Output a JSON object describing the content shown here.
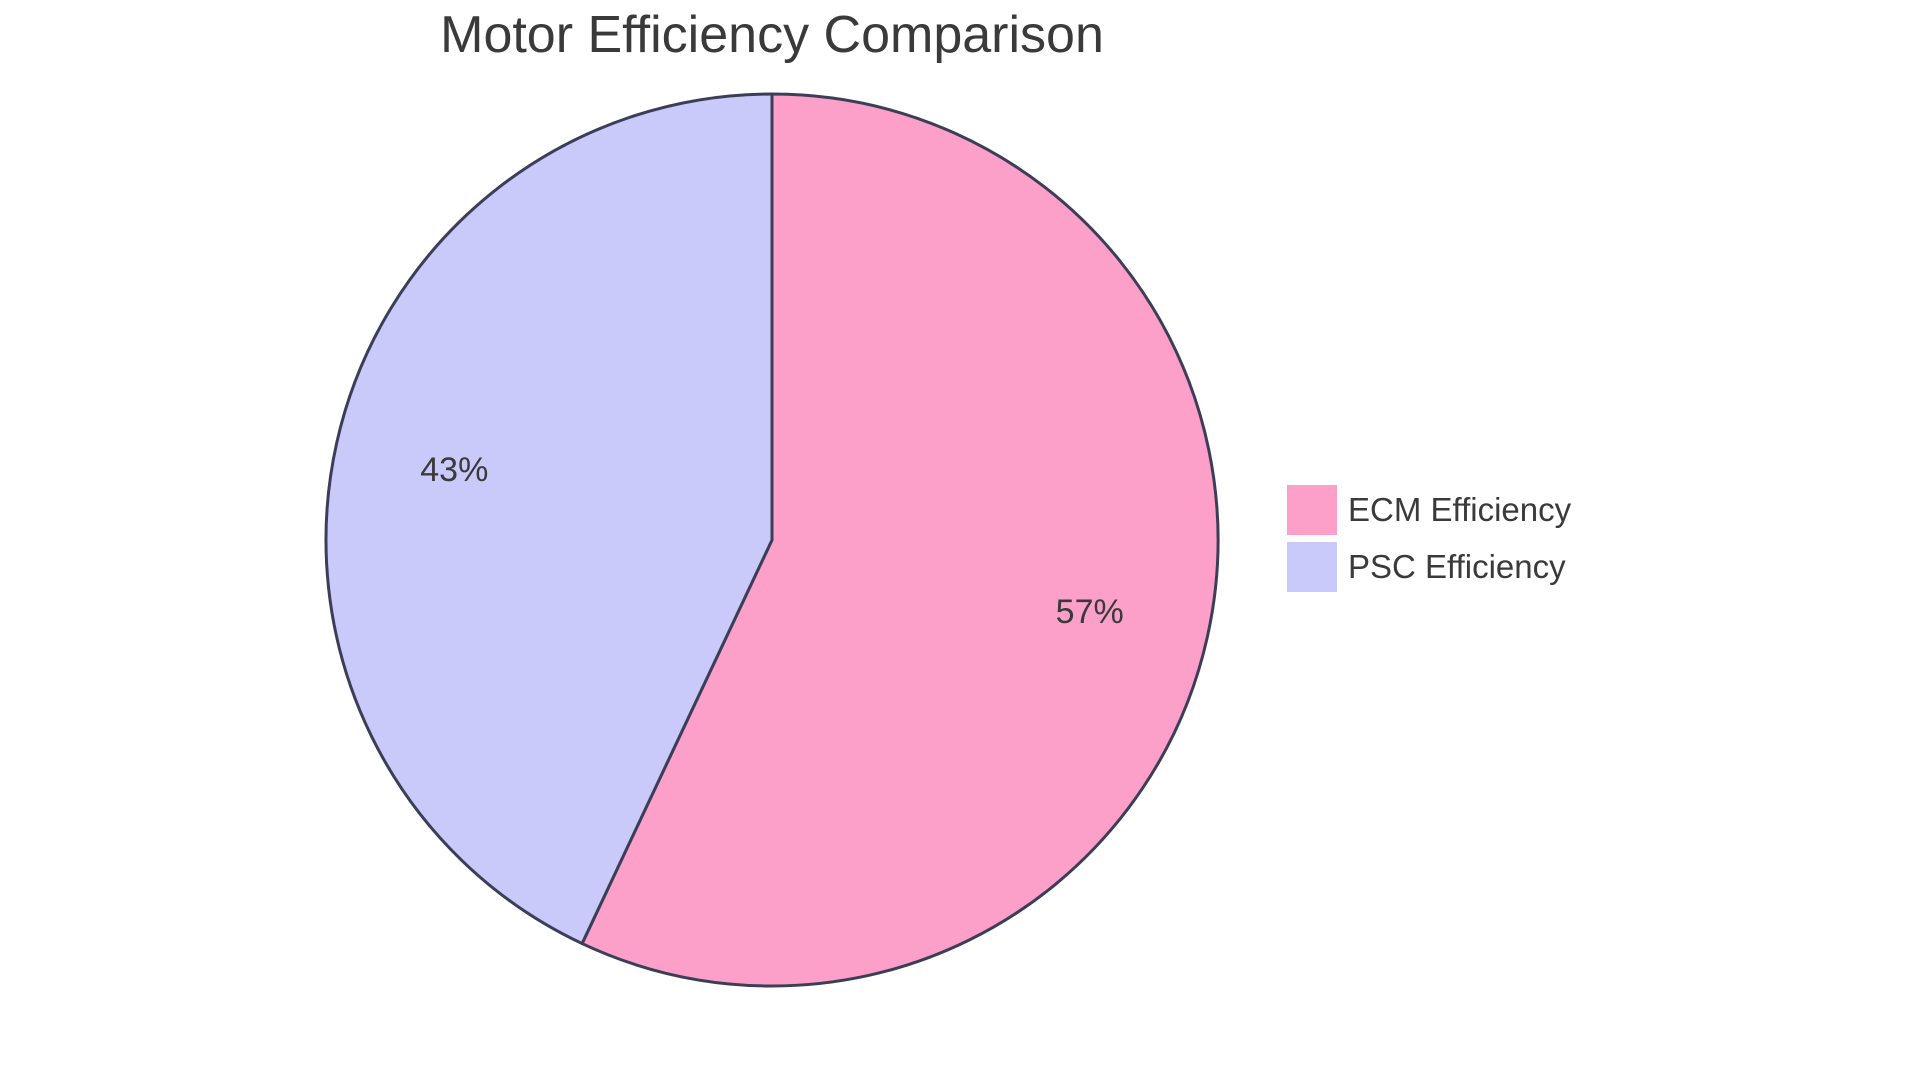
{
  "chart_data": {
    "type": "pie",
    "title": "Motor Efficiency Comparison",
    "labels": [
      "ECM Efficiency",
      "PSC Efficiency"
    ],
    "values": [
      57,
      43
    ],
    "percent_labels": [
      "57%",
      "43%"
    ],
    "colors": [
      "#FCA0CA",
      "#C9C9FA"
    ],
    "border_color": "#3C3E58",
    "text_color": "#3A3A3A",
    "background_color": "#FFFFFF",
    "legend_position": "right",
    "start_angle_deg": 0,
    "direction": "clockwise",
    "labels_inside": true
  }
}
